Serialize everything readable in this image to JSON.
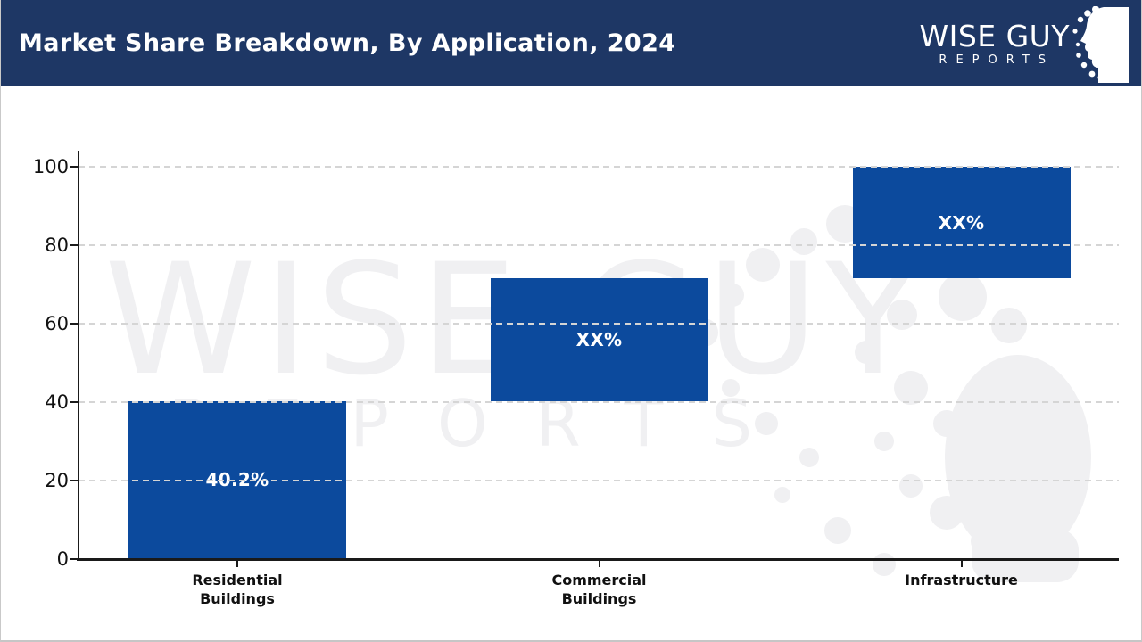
{
  "header": {
    "title": "Market Share Breakdown, By Application, 2024",
    "bg_color": "#1e3765",
    "logo": {
      "line1": "WISE GUY",
      "line2": "REPORTS"
    }
  },
  "watermark": {
    "line1": "WISE GUY",
    "line2": "REPORTS"
  },
  "chart_data": {
    "type": "bar",
    "subtype": "stacked-breakdown-waterfall",
    "title": "Market Share Breakdown, By Application, 2024",
    "categories": [
      "Residential\nBuildings",
      "Commercial\nBuildings",
      "Infrastructure"
    ],
    "segments": [
      {
        "category": "Residential Buildings",
        "start": 0,
        "end": 40.2,
        "label": "40.2%"
      },
      {
        "category": "Commercial Buildings",
        "start": 40.2,
        "end": 71.6,
        "label": "XX%"
      },
      {
        "category": "Infrastructure",
        "start": 71.6,
        "end": 100,
        "label": "XX%"
      }
    ],
    "ylim": [
      0,
      100
    ],
    "yticks": [
      0,
      20,
      40,
      60,
      80,
      100
    ],
    "bar_color": "#0c4a9d",
    "label_color": "#ffffff",
    "grid": "horizontal-dashed",
    "legend": "none"
  }
}
